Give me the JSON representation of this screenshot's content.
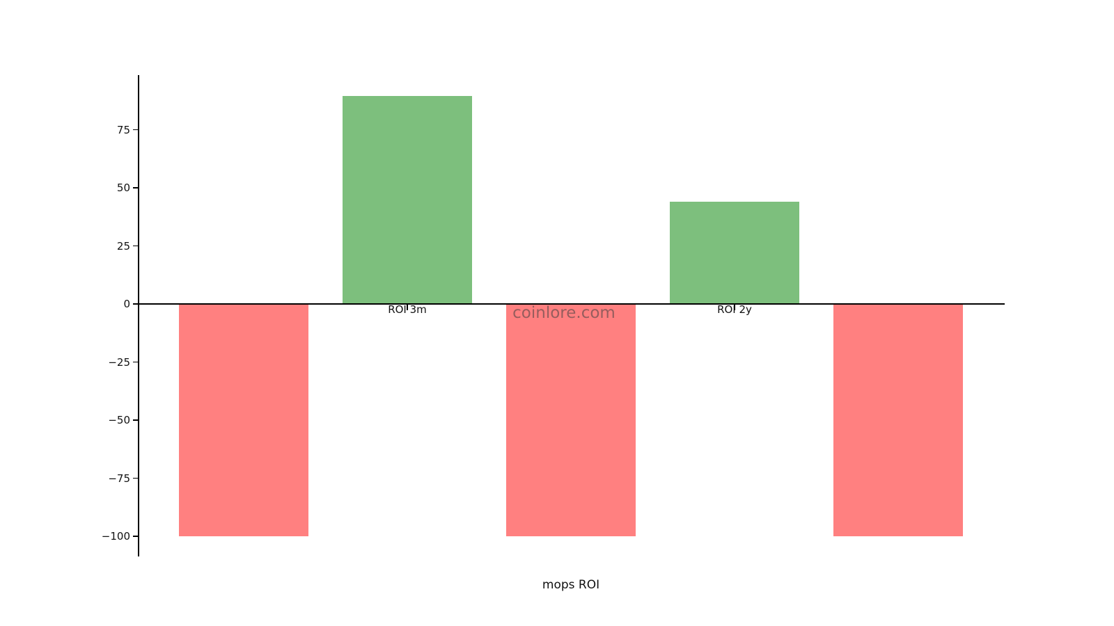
{
  "watermark": "coinlore.com",
  "chart_data": {
    "type": "bar",
    "title": "",
    "xlabel": "mops ROI",
    "ylabel": "",
    "categories": [
      "",
      "ROI 3m",
      "",
      "ROI 2y",
      ""
    ],
    "values": [
      -100,
      89.5,
      -100,
      44,
      -100
    ],
    "yticks": [
      75,
      50,
      25,
      0,
      -25,
      -50,
      -75,
      -100
    ],
    "ytick_labels": [
      "75",
      "50",
      "25",
      "0",
      "−25",
      "−50",
      "−75",
      "−100"
    ],
    "ylim": [
      -108.7,
      98.5
    ],
    "grid": false,
    "legend_position": "none",
    "colors": {
      "positive_bar": "#7dbf7d",
      "negative_bar": "#ff8080",
      "axis_line": "#000000",
      "tick_text": "#111111",
      "background": "#ffffff"
    },
    "notes": "red bars drawn over their x tick labels; only green-bar labels visible"
  }
}
